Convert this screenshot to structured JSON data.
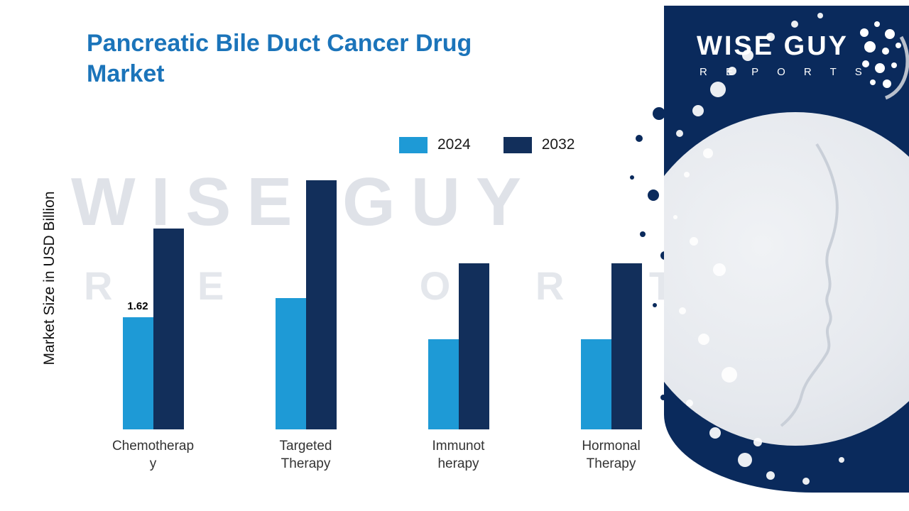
{
  "title": "Pancreatic Bile Duct Cancer Drug Market",
  "watermark": {
    "line1": "WISE GUY",
    "line2": "R E P O R T S"
  },
  "logo": {
    "line1": "WISE GUY",
    "line2": "R E P O R T S"
  },
  "legend": {
    "items": [
      {
        "label": "2024",
        "color": "#1e9ad6"
      },
      {
        "label": "2032",
        "color": "#122f5b"
      }
    ],
    "position": "top"
  },
  "chart_data": {
    "type": "bar",
    "title": "Pancreatic Bile Duct Cancer Drug Market",
    "categories": [
      "Chemotherapy",
      "Targeted Therapy",
      "Immunotherapy",
      "Hormonal Therapy"
    ],
    "display_labels": [
      "Chemotherap\ny",
      "Targeted\nTherapy",
      "Immunot\nherapy",
      "Hormonal\nTherapy"
    ],
    "series": [
      {
        "name": "2024",
        "color": "#1e9ad6",
        "values": [
          1.62,
          1.9,
          1.3,
          1.3
        ]
      },
      {
        "name": "2032",
        "color": "#122f5b",
        "values": [
          2.9,
          3.6,
          2.4,
          2.4
        ]
      }
    ],
    "xlabel": "",
    "ylabel": "Market Size in USD Billion",
    "ylim": [
      0,
      4
    ],
    "grid": false,
    "legend_position": "top",
    "annotations": [
      {
        "series": "2024",
        "category": "Chemotherapy",
        "text": "1.62"
      }
    ]
  }
}
